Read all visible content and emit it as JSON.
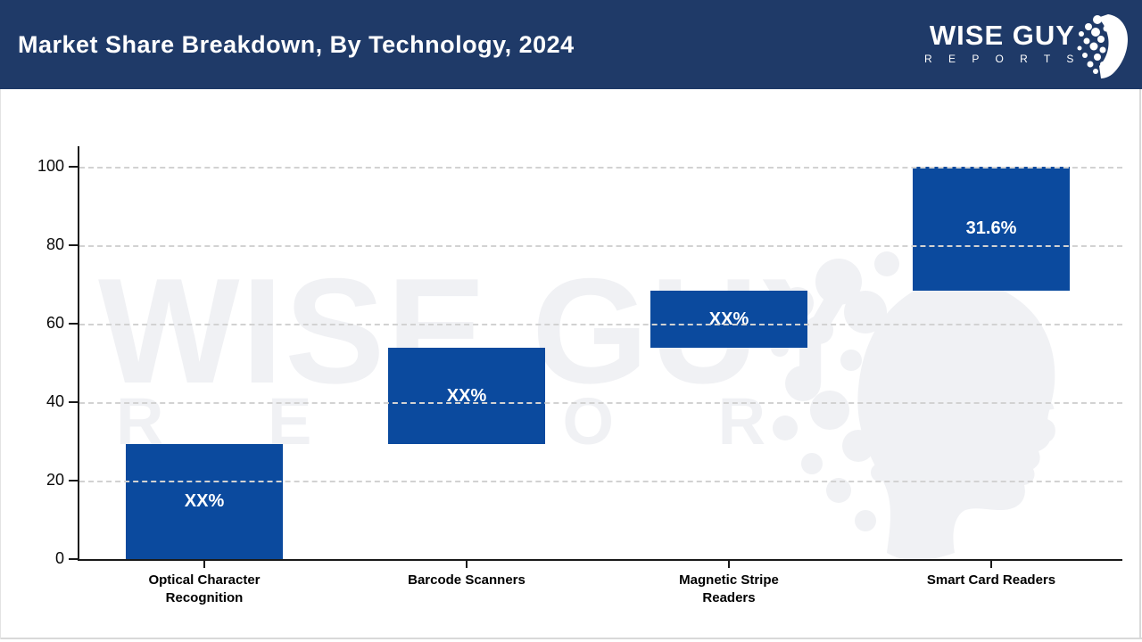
{
  "header": {
    "title": "Market Share Breakdown, By Technology, 2024",
    "logo": {
      "brand": "WISE GUY",
      "sub": "R E P O R T S"
    }
  },
  "watermark": {
    "brand": "WISE GUY",
    "sub": "R E P O R T S"
  },
  "colors": {
    "header_bg": "#1F3A68",
    "bar": "#0B4A9E",
    "bar_label": "#FFFFFF",
    "gridline": "#D2D2D2",
    "axis": "#1A1A1A",
    "watermark": "#F0F1F4"
  },
  "chart_data": {
    "type": "bar",
    "subtype": "waterfall",
    "title": "Market Share Breakdown, By Technology, 2024",
    "xlabel": "",
    "ylabel": "",
    "ylim": [
      0,
      105
    ],
    "y_ticks": [
      0,
      20,
      40,
      60,
      80,
      100
    ],
    "grid": "horizontal dashed",
    "legend": "none",
    "value_unit": "%",
    "categories": [
      "Optical Character\nRecognition",
      "Barcode Scanners",
      "Magnetic Stripe\nReaders",
      "Smart Card Readers"
    ],
    "bars": [
      {
        "category": "Optical Character\nRecognition",
        "start": 0,
        "end": 29.3,
        "value": 29.3,
        "label": "XX%"
      },
      {
        "category": "Barcode Scanners",
        "start": 29.3,
        "end": 53.8,
        "value": 24.5,
        "label": "XX%"
      },
      {
        "category": "Magnetic Stripe\nReaders",
        "start": 53.8,
        "end": 68.4,
        "value": 14.6,
        "label": "XX%"
      },
      {
        "category": "Smart Card Readers",
        "start": 68.4,
        "end": 100,
        "value": 31.6,
        "label": "31.6%"
      }
    ]
  }
}
